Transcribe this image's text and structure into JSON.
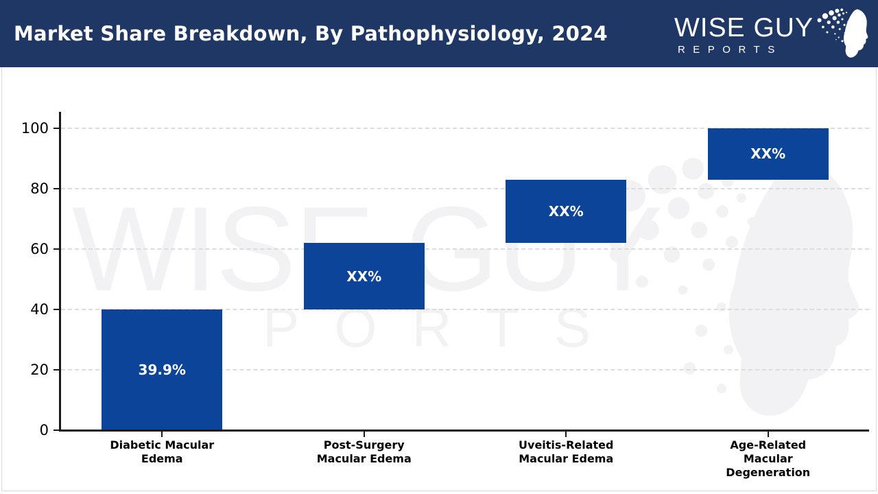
{
  "header": {
    "title": "Market Share Breakdown, By Pathophysiology, 2024",
    "logo": {
      "wordmark": "WISE GUY",
      "subtitle": "REPORTS"
    }
  },
  "watermark": {
    "wordmark": "WISE GUY",
    "subtitle": "PORTS"
  },
  "colors": {
    "header_bg": "#1f3764",
    "bar": "#0b4499",
    "bar_label": "#ffffff",
    "watermark": "#f2f2f5",
    "grid": "#dcdcdc",
    "axis": "#1a1a1a"
  },
  "chart_data": {
    "type": "bar",
    "variant": "stacked-waterfall",
    "title": "Market Share Breakdown, By Pathophysiology, 2024",
    "categories": [
      "Diabetic Macular Edema",
      "Post-Surgery Macular Edema",
      "Uveitis-Related Macular Edema",
      "Age-Related Macular Degeneration"
    ],
    "category_lines": [
      [
        "Diabetic Macular",
        "Edema"
      ],
      [
        "Post-Surgery",
        "Macular Edema"
      ],
      [
        "Uveitis-Related",
        "Macular Edema"
      ],
      [
        "Age-Related",
        "Macular",
        "Degeneration"
      ]
    ],
    "series": [
      {
        "name": "Market share (%)",
        "segments": [
          {
            "category": "Diabetic Macular Edema",
            "start": 0,
            "end": 39.9,
            "label": "39.9%"
          },
          {
            "category": "Post-Surgery Macular Edema",
            "start": 40,
            "end": 62,
            "label": "XX%"
          },
          {
            "category": "Uveitis-Related Macular Edema",
            "start": 62,
            "end": 83,
            "label": "XX%"
          },
          {
            "category": "Age-Related Macular Degeneration",
            "start": 83,
            "end": 100,
            "label": "XX%"
          }
        ]
      }
    ],
    "ylim": [
      0,
      100
    ],
    "yticks": [
      0,
      20,
      40,
      60,
      80,
      100
    ],
    "grid": "horizontal-dashed",
    "legend": "none",
    "bar_color": "#0b4499",
    "label_color": "#ffffff"
  }
}
